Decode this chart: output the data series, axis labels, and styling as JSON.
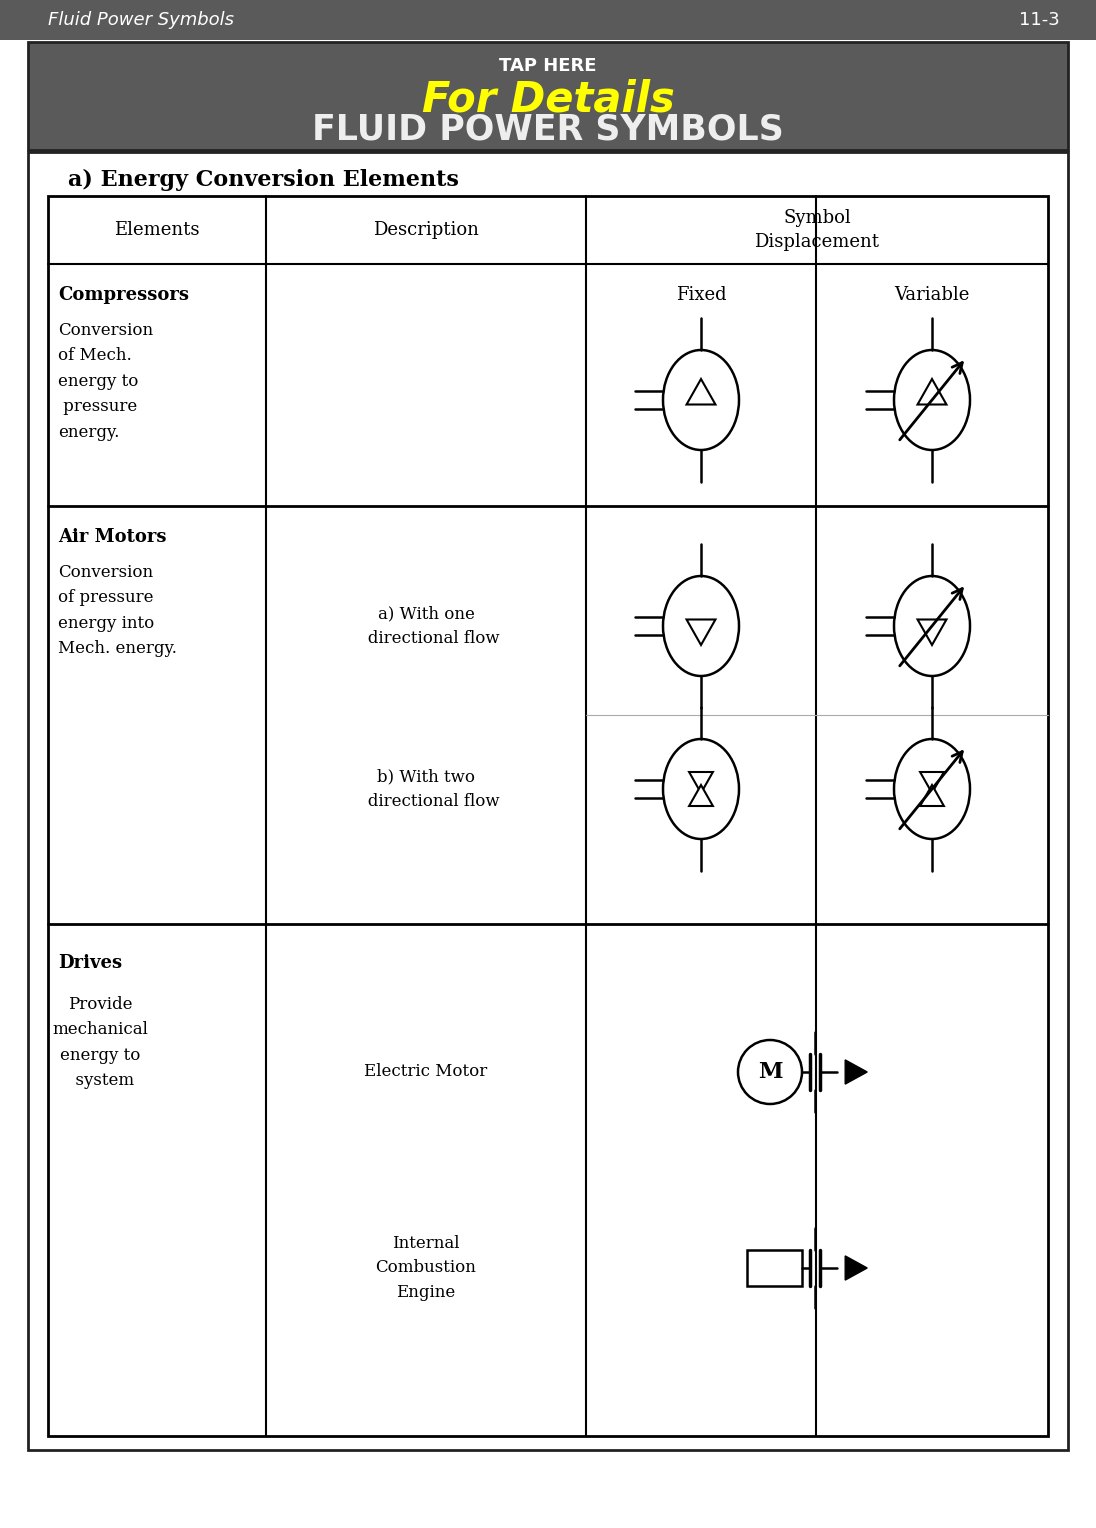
{
  "title": "FLUID POWER SYMBOLS",
  "tap_here": "TAP HERE",
  "for_details": "For Details",
  "header_text": "Fluid Power Symbols",
  "page_num": "11-3",
  "section_title": "a) Energy Conversion Elements",
  "row1_elem_bold": "Compressors",
  "row1_desc": "Conversion\nof Mech.\nenergy to\n pressure\nenergy.",
  "row2_elem_bold": "Air Motors",
  "row2_desc": "Conversion\nof pressure\nenergy into\nMech. energy.",
  "row2_subdesc1": "a) With one\n   directional flow",
  "row2_subdesc2": "b) With two\n   directional flow",
  "row3_elem_bold": "Drives",
  "row3_desc": "Provide\nmechanical\nenergy to\n  system",
  "row3_subdesc1": "Electric Motor",
  "row3_subdesc2": "Internal\nCombustion\nEngine",
  "col_hdr0": "Elements",
  "col_hdr1": "Description",
  "col_hdr2": "Symbol\nDisplacement",
  "sub_hdr_fixed": "Fixed",
  "sub_hdr_variable": "Variable",
  "bg_dark": "#5a5a5a",
  "text_yellow": "#ffff00",
  "text_white": "#ffffff",
  "text_black": "#000000"
}
